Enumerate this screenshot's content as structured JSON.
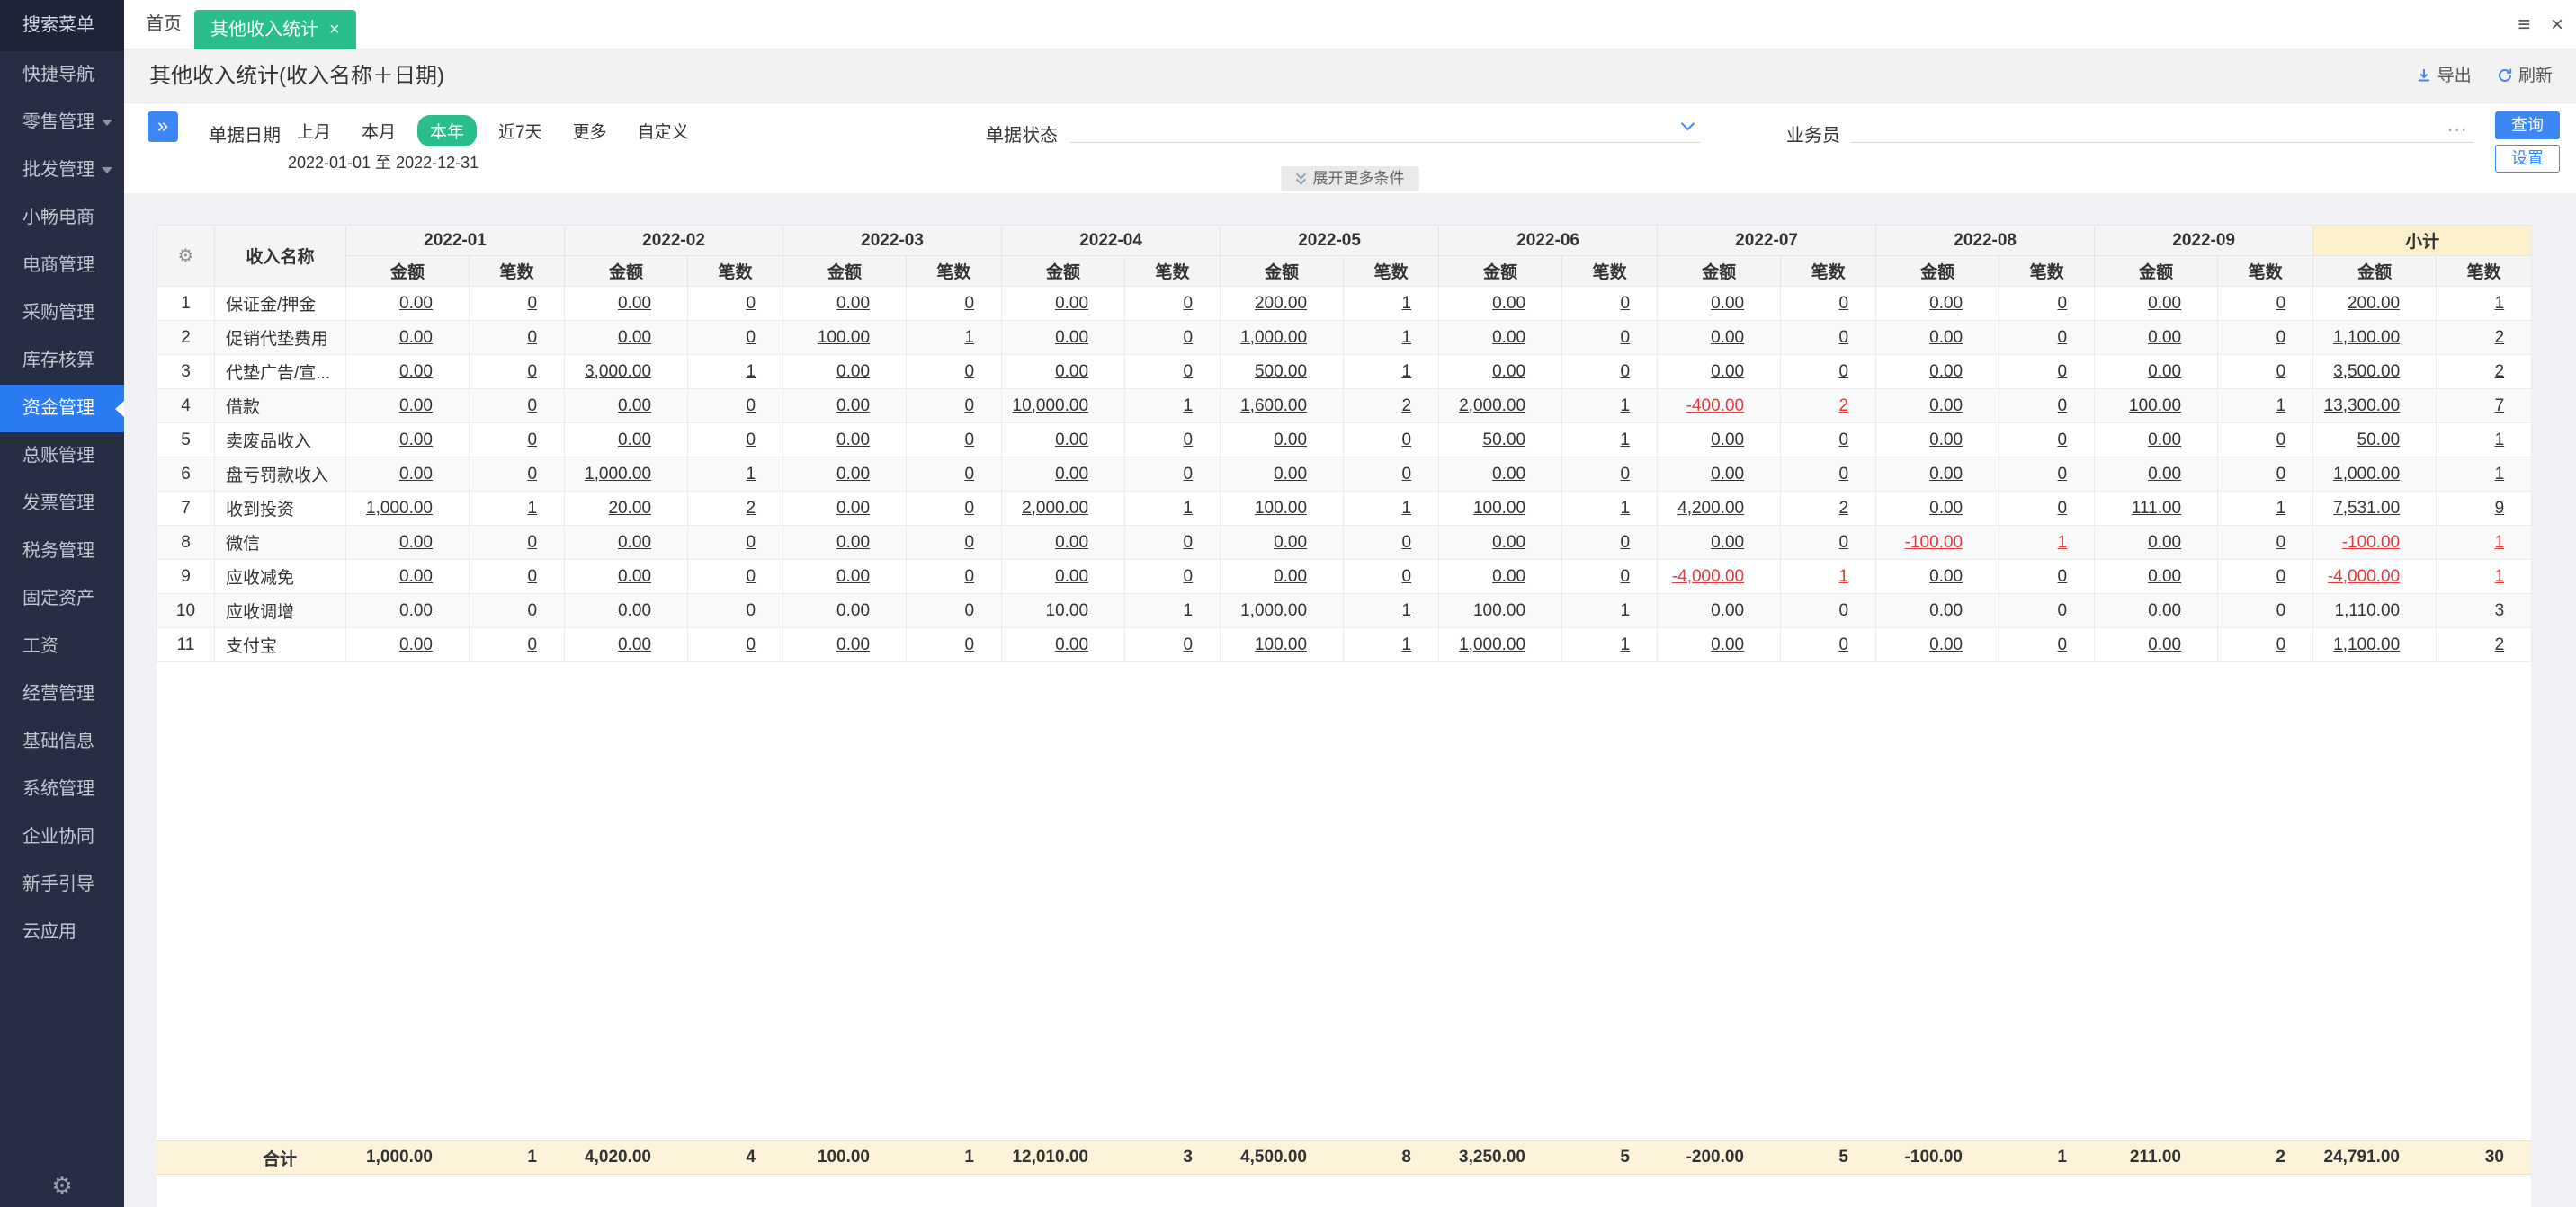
{
  "colors": {
    "sidebar_bg": "#272e43",
    "active_nav_blue": "#2b7cf0",
    "tab_green": "#2bbe8d",
    "accent_blue": "#3d87f5",
    "negative_red": "#e23b3b",
    "subtotal_header_bg": "#fbefcc",
    "total_row_bg": "#fcf3d9"
  },
  "icons": {
    "settings_gear": "⚙",
    "expand_panel": "»",
    "close": "×",
    "menu": "≡",
    "more_ellipsis": "..."
  },
  "sidebar": {
    "search_label": "搜索菜单",
    "items": [
      {
        "label": "快捷导航"
      },
      {
        "label": "零售管理",
        "expandable": true
      },
      {
        "label": "批发管理",
        "expandable": true
      },
      {
        "label": "小畅电商"
      },
      {
        "label": "电商管理"
      },
      {
        "label": "采购管理"
      },
      {
        "label": "库存核算"
      },
      {
        "label": "资金管理",
        "active": true
      },
      {
        "label": "总账管理"
      },
      {
        "label": "发票管理"
      },
      {
        "label": "税务管理"
      },
      {
        "label": "固定资产"
      },
      {
        "label": "工资"
      },
      {
        "label": "经营管理"
      },
      {
        "label": "基础信息"
      },
      {
        "label": "系统管理"
      },
      {
        "label": "企业协同"
      },
      {
        "label": "新手引导"
      },
      {
        "label": "云应用"
      }
    ]
  },
  "tabbar": {
    "home_tab": "首页",
    "active_tab": "其他收入统计"
  },
  "header": {
    "title": "其他收入统计(收入名称＋日期)",
    "export_label": "导出",
    "refresh_label": "刷新"
  },
  "filters": {
    "date_label": "单据日期",
    "quick_options": [
      "上月",
      "本月",
      "本年",
      "近7天",
      "更多",
      "自定义"
    ],
    "active_quick": "本年",
    "date_range": "2022-01-01 至 2022-12-31",
    "status_label": "单据状态",
    "salesman_label": "业务员",
    "query_button": "查询",
    "settings_button": "设置",
    "expand_more": "展开更多条件"
  },
  "grid": {
    "name_header": "收入名称",
    "amount_header": "金额",
    "count_header": "笔数",
    "subtotal_header": "小计",
    "total_label": "合计",
    "months": [
      "2022-01",
      "2022-02",
      "2022-03",
      "2022-04",
      "2022-05",
      "2022-06",
      "2022-07",
      "2022-08",
      "2022-09"
    ],
    "rows": [
      {
        "index": 1,
        "name": "保证金/押金",
        "cells": [
          [
            0,
            0
          ],
          [
            0,
            0
          ],
          [
            0,
            0
          ],
          [
            0,
            0
          ],
          [
            200,
            1
          ],
          [
            0,
            0
          ],
          [
            0,
            0
          ],
          [
            0,
            0
          ],
          [
            0,
            0
          ],
          [
            200,
            1
          ]
        ]
      },
      {
        "index": 2,
        "name": "促销代垫费用",
        "cells": [
          [
            0,
            0
          ],
          [
            0,
            0
          ],
          [
            100,
            1
          ],
          [
            0,
            0
          ],
          [
            1000,
            1
          ],
          [
            0,
            0
          ],
          [
            0,
            0
          ],
          [
            0,
            0
          ],
          [
            0,
            0
          ],
          [
            1100,
            2
          ]
        ]
      },
      {
        "index": 3,
        "name": "代垫广告/宣...",
        "cells": [
          [
            0,
            0
          ],
          [
            3000,
            1
          ],
          [
            0,
            0
          ],
          [
            0,
            0
          ],
          [
            500,
            1
          ],
          [
            0,
            0
          ],
          [
            0,
            0
          ],
          [
            0,
            0
          ],
          [
            0,
            0
          ],
          [
            3500,
            2
          ]
        ]
      },
      {
        "index": 4,
        "name": "借款",
        "cells": [
          [
            0,
            0
          ],
          [
            0,
            0
          ],
          [
            0,
            0
          ],
          [
            10000,
            1
          ],
          [
            1600,
            2
          ],
          [
            2000,
            1
          ],
          [
            -400,
            2
          ],
          [
            0,
            0
          ],
          [
            100,
            1
          ],
          [
            13300,
            7
          ]
        ]
      },
      {
        "index": 5,
        "name": "卖废品收入",
        "cells": [
          [
            0,
            0
          ],
          [
            0,
            0
          ],
          [
            0,
            0
          ],
          [
            0,
            0
          ],
          [
            0,
            0
          ],
          [
            50,
            1
          ],
          [
            0,
            0
          ],
          [
            0,
            0
          ],
          [
            0,
            0
          ],
          [
            50,
            1
          ]
        ]
      },
      {
        "index": 6,
        "name": "盘亏罚款收入",
        "cells": [
          [
            0,
            0
          ],
          [
            1000,
            1
          ],
          [
            0,
            0
          ],
          [
            0,
            0
          ],
          [
            0,
            0
          ],
          [
            0,
            0
          ],
          [
            0,
            0
          ],
          [
            0,
            0
          ],
          [
            0,
            0
          ],
          [
            1000,
            1
          ]
        ]
      },
      {
        "index": 7,
        "name": "收到投资",
        "cells": [
          [
            1000,
            1
          ],
          [
            20,
            2
          ],
          [
            0,
            0
          ],
          [
            2000,
            1
          ],
          [
            100,
            1
          ],
          [
            100,
            1
          ],
          [
            4200,
            2
          ],
          [
            0,
            0
          ],
          [
            111,
            1
          ],
          [
            7531,
            9
          ]
        ]
      },
      {
        "index": 8,
        "name": "微信",
        "cells": [
          [
            0,
            0
          ],
          [
            0,
            0
          ],
          [
            0,
            0
          ],
          [
            0,
            0
          ],
          [
            0,
            0
          ],
          [
            0,
            0
          ],
          [
            0,
            0
          ],
          [
            -100,
            1
          ],
          [
            0,
            0
          ],
          [
            -100,
            1
          ]
        ]
      },
      {
        "index": 9,
        "name": "应收减免",
        "cells": [
          [
            0,
            0
          ],
          [
            0,
            0
          ],
          [
            0,
            0
          ],
          [
            0,
            0
          ],
          [
            0,
            0
          ],
          [
            0,
            0
          ],
          [
            -4000,
            1
          ],
          [
            0,
            0
          ],
          [
            0,
            0
          ],
          [
            -4000,
            1
          ]
        ]
      },
      {
        "index": 10,
        "name": "应收调增",
        "cells": [
          [
            0,
            0
          ],
          [
            0,
            0
          ],
          [
            0,
            0
          ],
          [
            10,
            1
          ],
          [
            1000,
            1
          ],
          [
            100,
            1
          ],
          [
            0,
            0
          ],
          [
            0,
            0
          ],
          [
            0,
            0
          ],
          [
            1110,
            3
          ]
        ]
      },
      {
        "index": 11,
        "name": "支付宝",
        "cells": [
          [
            0,
            0
          ],
          [
            0,
            0
          ],
          [
            0,
            0
          ],
          [
            0,
            0
          ],
          [
            100,
            1
          ],
          [
            1000,
            1
          ],
          [
            0,
            0
          ],
          [
            0,
            0
          ],
          [
            0,
            0
          ],
          [
            1100,
            2
          ]
        ]
      }
    ],
    "total": [
      [
        1000,
        1
      ],
      [
        4020,
        4
      ],
      [
        100,
        1
      ],
      [
        12010,
        3
      ],
      [
        4500,
        8
      ],
      [
        3250,
        5
      ],
      [
        -200,
        5
      ],
      [
        -100,
        1
      ],
      [
        211,
        2
      ],
      [
        24791,
        30
      ]
    ]
  }
}
